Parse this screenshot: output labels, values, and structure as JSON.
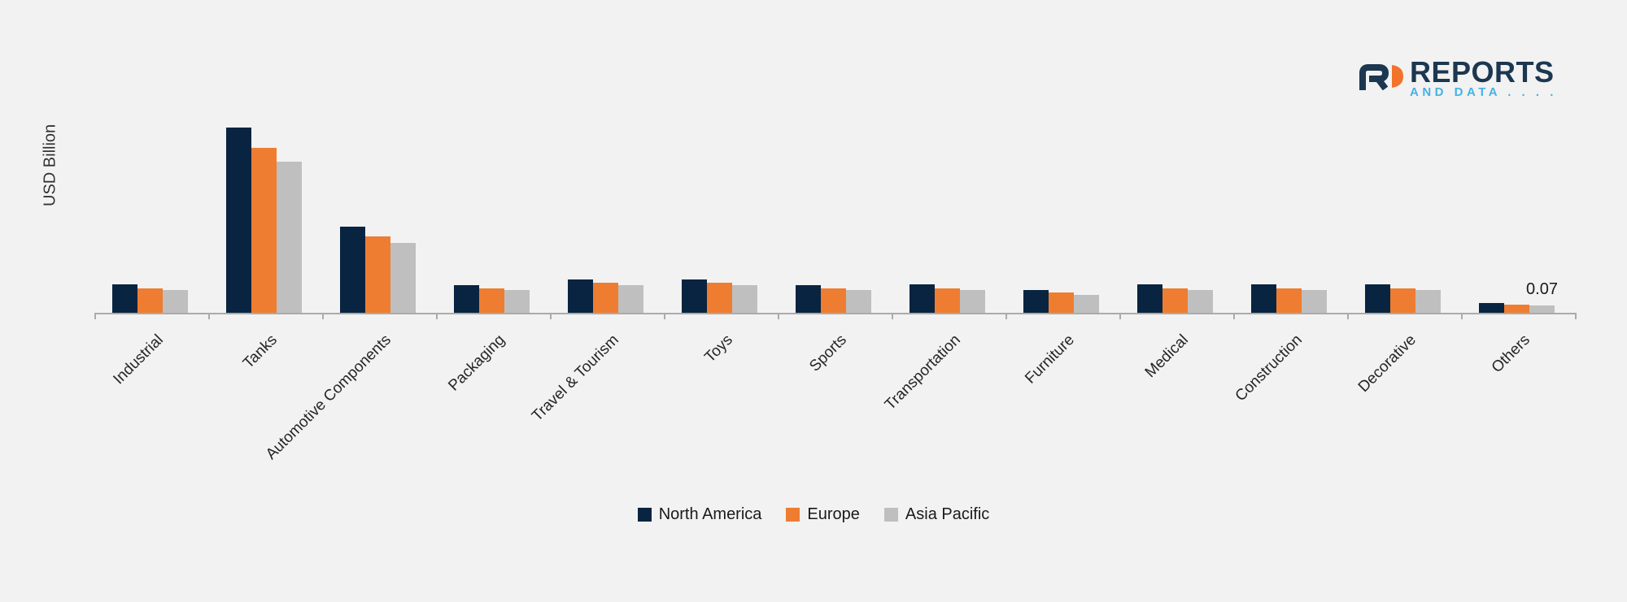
{
  "page": {
    "background": "#f2f2f2"
  },
  "logo": {
    "title": "REPORTS",
    "subtitle": "AND DATA . . . .",
    "title_color": "#1c3750",
    "subtitle_color": "#45b1e8",
    "icon_navy": "#1c3750",
    "icon_orange": "#f3722c"
  },
  "chart_data": {
    "type": "bar",
    "title": "",
    "xlabel": "",
    "ylabel": "USD Billion",
    "ylim": [
      0,
      1.8
    ],
    "grid": false,
    "legend_position": "bottom",
    "axis_color": "#ababab",
    "categories": [
      "Industrial",
      "Tanks",
      "Automotive Components",
      "Packaging",
      "Travel & Tourism",
      "Toys",
      "Sports",
      "Transportation",
      "Furniture",
      "Medical",
      "Construction",
      "Decorative",
      "Others"
    ],
    "series": [
      {
        "name": "North America",
        "color": "#082440",
        "values": [
          0.27,
          1.77,
          0.82,
          0.26,
          0.32,
          0.32,
          0.26,
          0.27,
          0.22,
          0.27,
          0.27,
          0.27,
          0.09
        ]
      },
      {
        "name": "Europe",
        "color": "#ee7d31",
        "values": [
          0.23,
          1.57,
          0.73,
          0.23,
          0.29,
          0.29,
          0.23,
          0.23,
          0.19,
          0.23,
          0.23,
          0.23,
          0.08
        ]
      },
      {
        "name": "Asia Pacific",
        "color": "#bfbfbf",
        "values": [
          0.22,
          1.44,
          0.67,
          0.22,
          0.26,
          0.26,
          0.22,
          0.22,
          0.17,
          0.22,
          0.22,
          0.22,
          0.07
        ]
      }
    ],
    "annotation": {
      "text": "0.07",
      "category_index": 12,
      "series_index": 2
    }
  }
}
